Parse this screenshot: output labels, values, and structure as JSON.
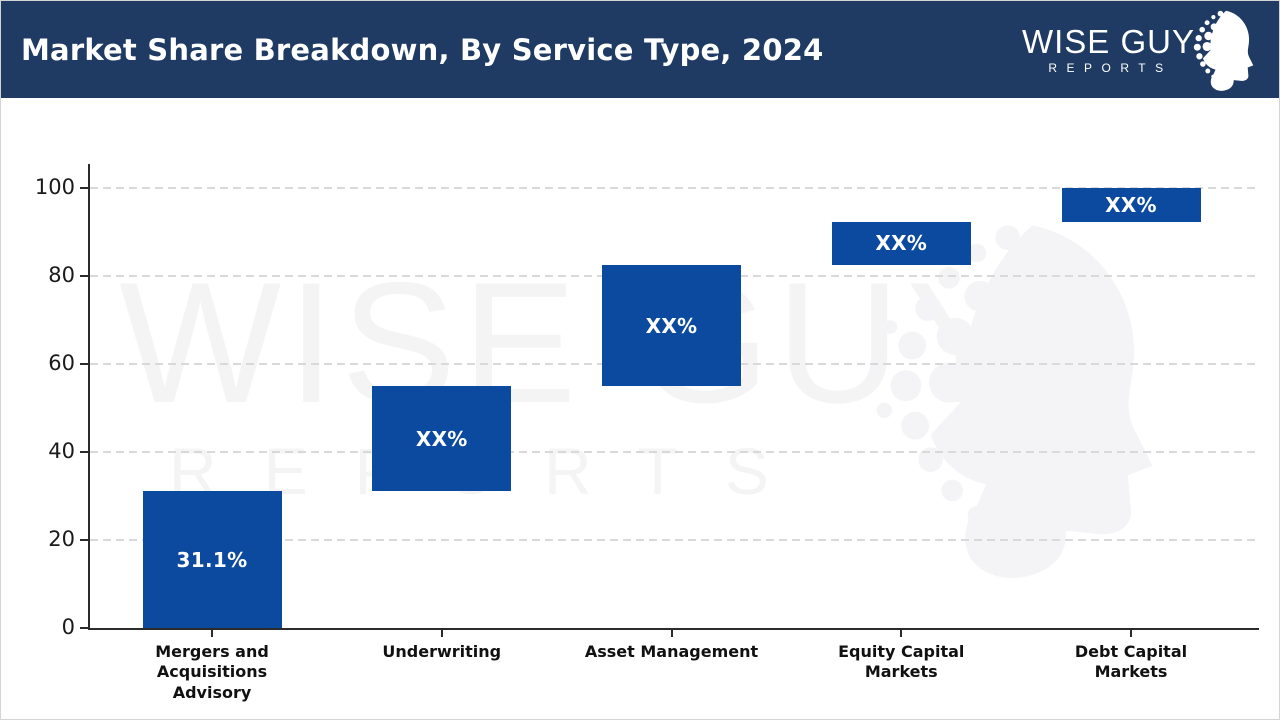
{
  "header": {
    "title": "Market Share Breakdown, By Service Type, 2024",
    "logo": {
      "wordmark": "WISE GUY",
      "subtext": "REPORTS"
    }
  },
  "watermark": {
    "line1": "WISE GUY",
    "line2": "REPORTS"
  },
  "chart_data": {
    "type": "bar",
    "subtype": "waterfall",
    "title": "Market Share Breakdown, By Service Type, 2024",
    "categories": [
      "Mergers and Acquisitions Advisory",
      "Underwriting",
      "Asset Management",
      "Equity Capital Markets",
      "Debt Capital Markets"
    ],
    "segments": [
      {
        "category": "Mergers and Acquisitions Advisory",
        "start": 0,
        "end": 31.1,
        "value_label": "31.1%"
      },
      {
        "category": "Underwriting",
        "start": 31.1,
        "end": 55.0,
        "value_label": "XX%"
      },
      {
        "category": "Asset Management",
        "start": 55.0,
        "end": 82.5,
        "value_label": "XX%"
      },
      {
        "category": "Equity Capital Markets",
        "start": 82.5,
        "end": 92.3,
        "value_label": "XX%"
      },
      {
        "category": "Debt Capital Markets",
        "start": 92.3,
        "end": 100.0,
        "value_label": "XX%"
      }
    ],
    "ylim": [
      0,
      100
    ],
    "yticks": [
      0,
      20,
      40,
      60,
      80,
      100
    ],
    "grid": "dashed-horizontal",
    "legend": "none",
    "bar_color": "#0b4a9e",
    "bar_label_color": "#ffffff"
  },
  "colors": {
    "header_bg": "#1f3a63",
    "bar": "#0b4a9e",
    "axis": "#2b2b2b",
    "grid": "#d9d9d9",
    "watermark": "#f4f4f5"
  }
}
